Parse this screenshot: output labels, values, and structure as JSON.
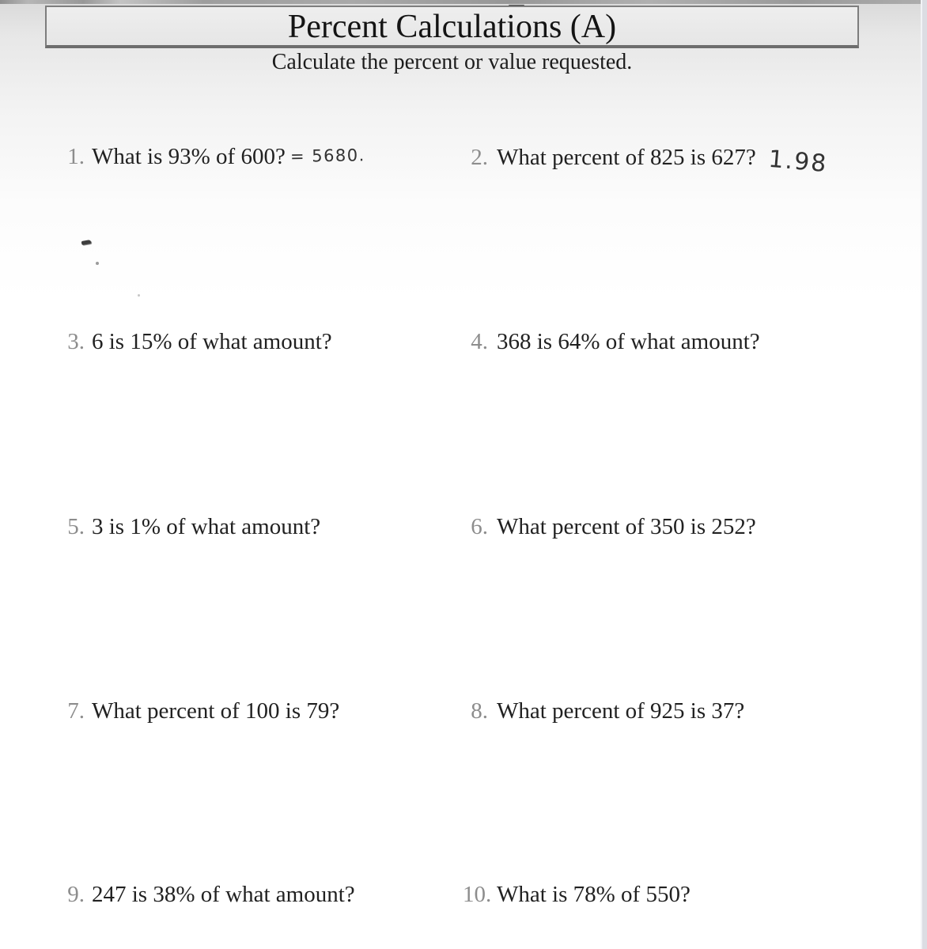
{
  "header": {
    "title": "Percent Calculations (A)",
    "subtitle": "Calculate the percent or value requested."
  },
  "questions": [
    {
      "num": "1.",
      "text": "What is 93% of 600?",
      "answer": "= 5680."
    },
    {
      "num": "2.",
      "text": "What percent of 825 is 627?",
      "answer": "1.98"
    },
    {
      "num": "3.",
      "text": "6 is 15% of what amount?",
      "answer": ""
    },
    {
      "num": "4.",
      "text": "368 is 64% of what amount?",
      "answer": ""
    },
    {
      "num": "5.",
      "text": "3 is 1% of what amount?",
      "answer": ""
    },
    {
      "num": "6.",
      "text": "What percent of 350 is 252?",
      "answer": ""
    },
    {
      "num": "7.",
      "text": "What percent of 100 is 79?",
      "answer": ""
    },
    {
      "num": "8.",
      "text": "What percent of 925 is 37?",
      "answer": ""
    },
    {
      "num": "9.",
      "text": "247 is 38% of what amount?",
      "answer": ""
    },
    {
      "num": "10.",
      "text": "What is 78% of 550?",
      "answer": ""
    }
  ],
  "colors": {
    "question_number": "#8d8d8d",
    "question_text": "#212121",
    "handwriting": "#333333",
    "title_box_fill": "#eaeaea",
    "title_box_border": "#7d7d7d",
    "page_background_top": "#d9d9d9",
    "page_background_bottom": "#ffffff"
  }
}
